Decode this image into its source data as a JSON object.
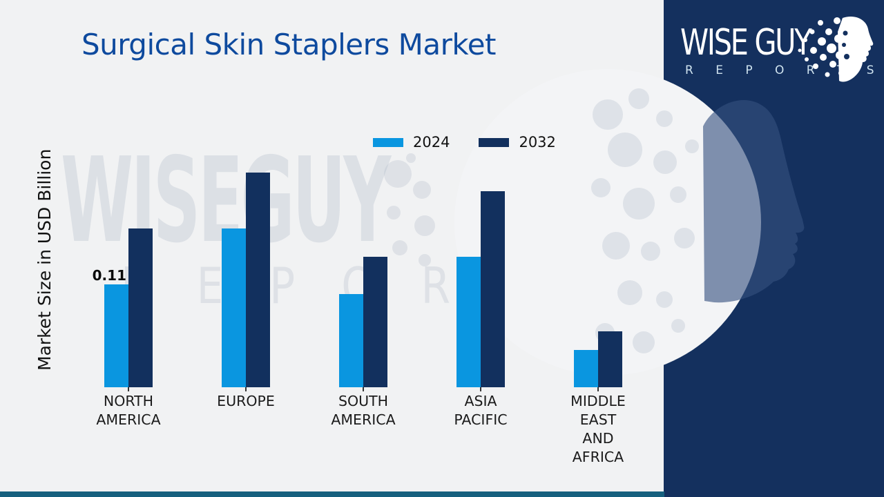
{
  "page": {
    "title": "Surgical Skin Staplers Market"
  },
  "branding": {
    "logo_name": "WISE GUY",
    "logo_sub": "R E P O R T S",
    "watermark_name": "WISEGUY",
    "watermark_sub": "R E P O R T S",
    "icons": [
      "face-profile-icon",
      "dotted-head-icon"
    ]
  },
  "chart_data": {
    "type": "bar",
    "title": "Surgical Skin Staplers Market",
    "xlabel": "",
    "ylabel": "Market Size in USD Billion",
    "categories": [
      "NORTH\nAMERICA",
      "EUROPE",
      "SOUTH\nAMERICA",
      "ASIA\nPACIFIC",
      "MIDDLE\nEAST\nAND\nAFRICA"
    ],
    "series": [
      {
        "name": "2024",
        "color": "#0a96e0",
        "values": [
          0.11,
          0.17,
          0.1,
          0.14,
          0.04
        ]
      },
      {
        "name": "2032",
        "color": "#12305e",
        "values": [
          0.17,
          0.23,
          0.14,
          0.21,
          0.06
        ]
      }
    ],
    "bar_labels": [
      {
        "series_index": 0,
        "category_index": 0,
        "text": "0.11"
      }
    ],
    "ylim": [
      0,
      0.25
    ],
    "grid": false,
    "legend_position": "top"
  },
  "colors": {
    "background": "#f1f2f3",
    "title": "#0e4a9e",
    "series_2024": "#0a96e0",
    "series_2032": "#12305e",
    "brand_band": "#14305e",
    "footer_strip": "#16607e"
  }
}
